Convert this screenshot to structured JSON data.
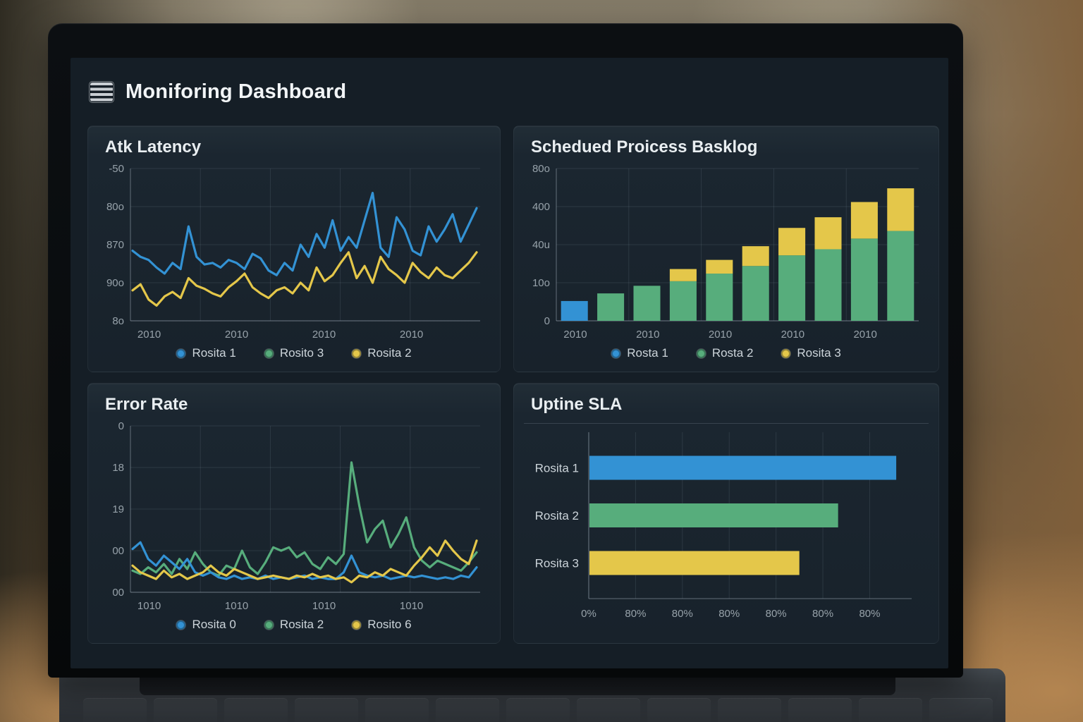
{
  "header": {
    "title": "Moniforing Dashboard"
  },
  "theme": {
    "screen_bg": "#151e26",
    "panel_bg": "#1b2630",
    "text": "#e9eef1",
    "muted": "#97a2aa",
    "grid": "#39444d",
    "blue": "#3392d4",
    "green": "#57ad7c",
    "yellow": "#e4c74a"
  },
  "chart_data": [
    {
      "type": "line",
      "title": "Atk Latency",
      "ylim": [
        0,
        100
      ],
      "grid": true,
      "y_ticks": [
        "-50",
        "80o",
        "870",
        "90o",
        "8o"
      ],
      "x_ticks": [
        "2010",
        "2010",
        "2010",
        "2010"
      ],
      "legend": [
        {
          "label": "Rosita 1",
          "color": "blue"
        },
        {
          "label": "Rosito 3",
          "color": "green"
        },
        {
          "label": "Rosita 2",
          "color": "yellow"
        }
      ],
      "series": [
        {
          "name": "Rosita 1",
          "color": "blue",
          "values": [
            46,
            42,
            40,
            35,
            31,
            38,
            34,
            62,
            42,
            37,
            38,
            35,
            40,
            38,
            34,
            44,
            41,
            33,
            30,
            38,
            33,
            50,
            42,
            57,
            48,
            66,
            46,
            55,
            48,
            66,
            84,
            48,
            42,
            68,
            60,
            46,
            43,
            62,
            52,
            60,
            70,
            52,
            63,
            74
          ]
        },
        {
          "name": "Rosita 2",
          "color": "yellow",
          "values": [
            20,
            24,
            14,
            10,
            16,
            19,
            15,
            28,
            23,
            21,
            18,
            16,
            22,
            26,
            31,
            22,
            18,
            15,
            20,
            22,
            18,
            25,
            20,
            35,
            26,
            30,
            38,
            45,
            28,
            36,
            25,
            42,
            34,
            30,
            25,
            38,
            32,
            28,
            35,
            30,
            28,
            33,
            38,
            45
          ]
        }
      ]
    },
    {
      "type": "stacked-bar",
      "title": "Schedued Proicess Basklog",
      "ylim": [
        0,
        100
      ],
      "grid": true,
      "y_ticks": [
        "80o",
        "400",
        "40u",
        "10o",
        "0"
      ],
      "x_ticks": [
        "2010",
        "2010",
        "2010",
        "2010",
        "2010"
      ],
      "legend": [
        {
          "label": "Rosta 1",
          "color": "blue"
        },
        {
          "label": "Rosta 2",
          "color": "green"
        },
        {
          "label": "Rosita 3",
          "color": "yellow"
        }
      ],
      "series": [
        {
          "name": "Rosta 1",
          "color": "blue",
          "values": [
            13,
            0,
            0,
            0,
            0,
            0,
            0,
            0,
            0,
            0
          ]
        },
        {
          "name": "Rosta 2",
          "color": "green",
          "values": [
            0,
            18,
            23,
            26,
            31,
            36,
            43,
            47,
            54,
            59
          ]
        },
        {
          "name": "Rosita 3",
          "color": "yellow",
          "values": [
            0,
            0,
            0,
            8,
            9,
            13,
            18,
            21,
            24,
            28
          ]
        }
      ]
    },
    {
      "type": "line",
      "title": "Error Rate",
      "ylim": [
        0,
        100
      ],
      "grid": true,
      "y_ticks": [
        "0",
        "18",
        "19",
        "00",
        "00"
      ],
      "x_ticks": [
        "1010",
        "1010",
        "1010",
        "1010"
      ],
      "legend": [
        {
          "label": "Rosita 0",
          "color": "blue"
        },
        {
          "label": "Rosita 2",
          "color": "green"
        },
        {
          "label": "Rosito 6",
          "color": "yellow"
        }
      ],
      "series": [
        {
          "name": "Rosita 2",
          "color": "green",
          "values": [
            13,
            11,
            15,
            12,
            17,
            11,
            20,
            14,
            24,
            17,
            12,
            10,
            16,
            14,
            25,
            15,
            11,
            18,
            27,
            25,
            27,
            21,
            24,
            17,
            14,
            21,
            17,
            23,
            78,
            52,
            30,
            38,
            43,
            27,
            35,
            45,
            27,
            19,
            15,
            19,
            17,
            15,
            13,
            18,
            24
          ]
        },
        {
          "name": "Rosita 0",
          "color": "blue",
          "values": [
            26,
            30,
            20,
            16,
            22,
            18,
            14,
            20,
            12,
            10,
            12,
            9,
            8,
            10,
            8,
            9,
            8,
            10,
            8,
            9,
            8,
            9,
            10,
            8,
            9,
            8,
            8,
            12,
            22,
            12,
            10,
            9,
            10,
            8,
            9,
            10,
            9,
            10,
            9,
            8,
            9,
            8,
            10,
            9,
            15
          ]
        },
        {
          "name": "Rosito 6",
          "color": "yellow",
          "values": [
            16,
            12,
            10,
            8,
            13,
            9,
            11,
            8,
            10,
            12,
            16,
            12,
            10,
            14,
            12,
            10,
            8,
            9,
            10,
            9,
            8,
            10,
            9,
            11,
            9,
            10,
            8,
            9,
            6,
            10,
            9,
            12,
            10,
            14,
            12,
            10,
            16,
            21,
            27,
            22,
            31,
            25,
            20,
            17,
            31
          ]
        }
      ]
    },
    {
      "type": "hbar",
      "title": "Uptine SLA",
      "xlim": [
        0,
        100
      ],
      "grid": true,
      "x_ticks": [
        "0%",
        "80%",
        "80%",
        "80%",
        "80%",
        "80%",
        "80%"
      ],
      "rows": [
        {
          "label": "Rosita 1",
          "color": "blue",
          "value": 95
        },
        {
          "label": "Rosita 2",
          "color": "green",
          "value": 77
        },
        {
          "label": "Rosita 3",
          "color": "yellow",
          "value": 65
        }
      ]
    }
  ]
}
